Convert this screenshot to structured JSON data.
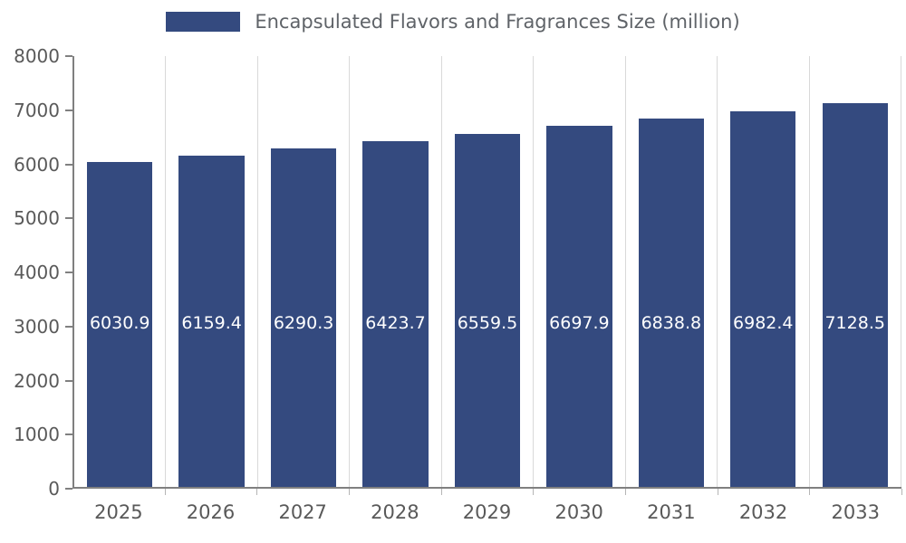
{
  "chart_data": {
    "type": "bar",
    "title": "Encapsulated Flavors and Fragrances Size (million)",
    "categories": [
      "2025",
      "2026",
      "2027",
      "2028",
      "2029",
      "2030",
      "2031",
      "2032",
      "2033"
    ],
    "values": [
      6030.9,
      6159.4,
      6290.3,
      6423.7,
      6559.5,
      6697.9,
      6838.8,
      6982.4,
      7128.5
    ],
    "xlabel": "",
    "ylabel": "",
    "ylim": [
      0,
      8000
    ],
    "ytick_step": 1000,
    "grid": "vertical-only",
    "legend_position": "top-center",
    "colors": {
      "bar": "#344a7f",
      "value_label": "#ffffff",
      "axis": "#808080",
      "gridline": "#d9d9d9",
      "tick_label": "#595959",
      "title": "#5f6368"
    }
  }
}
